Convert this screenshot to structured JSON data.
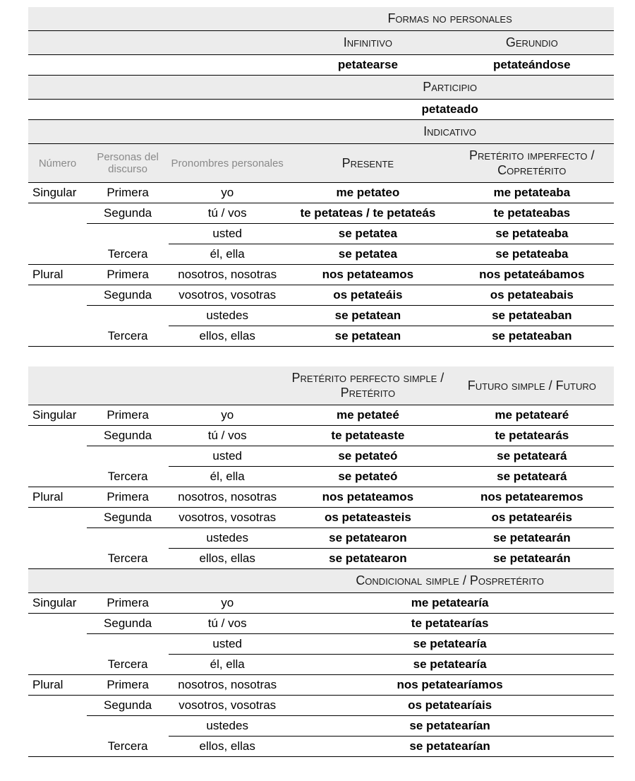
{
  "colors": {
    "header_bg": "#ececec",
    "text": "#000000",
    "muted": "#8a8a8a",
    "border": "#000000",
    "page_bg": "#ffffff"
  },
  "typography": {
    "base_family": "Arial, Helvetica, sans-serif",
    "header_fontsize_pt": 14,
    "body_fontsize_pt": 13,
    "value_weight": 700
  },
  "layout": {
    "col_widths_pct": [
      10,
      14,
      20,
      28,
      28
    ]
  },
  "headers": {
    "formas_no_personales": "Formas no personales",
    "infinitivo": "Infinitivo",
    "gerundio": "Gerundio",
    "participio": "Participio",
    "indicativo": "Indicativo",
    "numero": "Número",
    "personas_del_discurso": "Personas del discurso",
    "pronombres_personales": "Pronombres personales",
    "presente": "Presente",
    "pret_imperf": "Pretérito imperfecto / Copretérito",
    "pret_perf_simple": "Pretérito perfecto simple / Pretérito",
    "futuro_simple": "Futuro simple / Futuro",
    "condicional": "Condicional simple / Pospretérito"
  },
  "non_personal": {
    "infinitivo": "petatearse",
    "gerundio": "petateándose",
    "participio": "petateado"
  },
  "persons": {
    "singular": "Singular",
    "plural": "Plural",
    "primera": "Primera",
    "segunda": "Segunda",
    "tercera": "Tercera"
  },
  "pronouns": {
    "yo": "yo",
    "tu_vos": "tú / vos",
    "usted": "usted",
    "el_ella": "él, ella",
    "nosotros": "nosotros, nosotras",
    "vosotros": "vosotros, vosotras",
    "ustedes": "ustedes",
    "ellos": "ellos, ellas"
  },
  "tenses": {
    "presente": {
      "s1": "me petateo",
      "s2a": "te petateas / te petateás",
      "s2b": "se petatea",
      "s3": "se petatea",
      "p1": "nos petateamos",
      "p2a": "os petateáis",
      "p2b": "se petatean",
      "p3": "se petatean"
    },
    "imperfecto": {
      "s1": "me petateaba",
      "s2a": "te petateabas",
      "s2b": "se petateaba",
      "s3": "se petateaba",
      "p1": "nos petateábamos",
      "p2a": "os petateabais",
      "p2b": "se petateaban",
      "p3": "se petateaban"
    },
    "preterito": {
      "s1": "me petateé",
      "s2a": "te petateaste",
      "s2b": "se petateó",
      "s3": "se petateó",
      "p1": "nos petateamos",
      "p2a": "os petateasteis",
      "p2b": "se petatearon",
      "p3": "se petatearon"
    },
    "futuro": {
      "s1": "me petatearé",
      "s2a": "te petatearás",
      "s2b": "se petateará",
      "s3": "se petateará",
      "p1": "nos petatearemos",
      "p2a": "os petatearéis",
      "p2b": "se petatearán",
      "p3": "se petatearán"
    },
    "condicional": {
      "s1": "me petatearía",
      "s2a": "te petatearías",
      "s2b": "se petatearía",
      "s3": "se petatearía",
      "p1": "nos petatearíamos",
      "p2a": "os petatearíais",
      "p2b": "se petatearían",
      "p3": "se petatearían"
    }
  }
}
